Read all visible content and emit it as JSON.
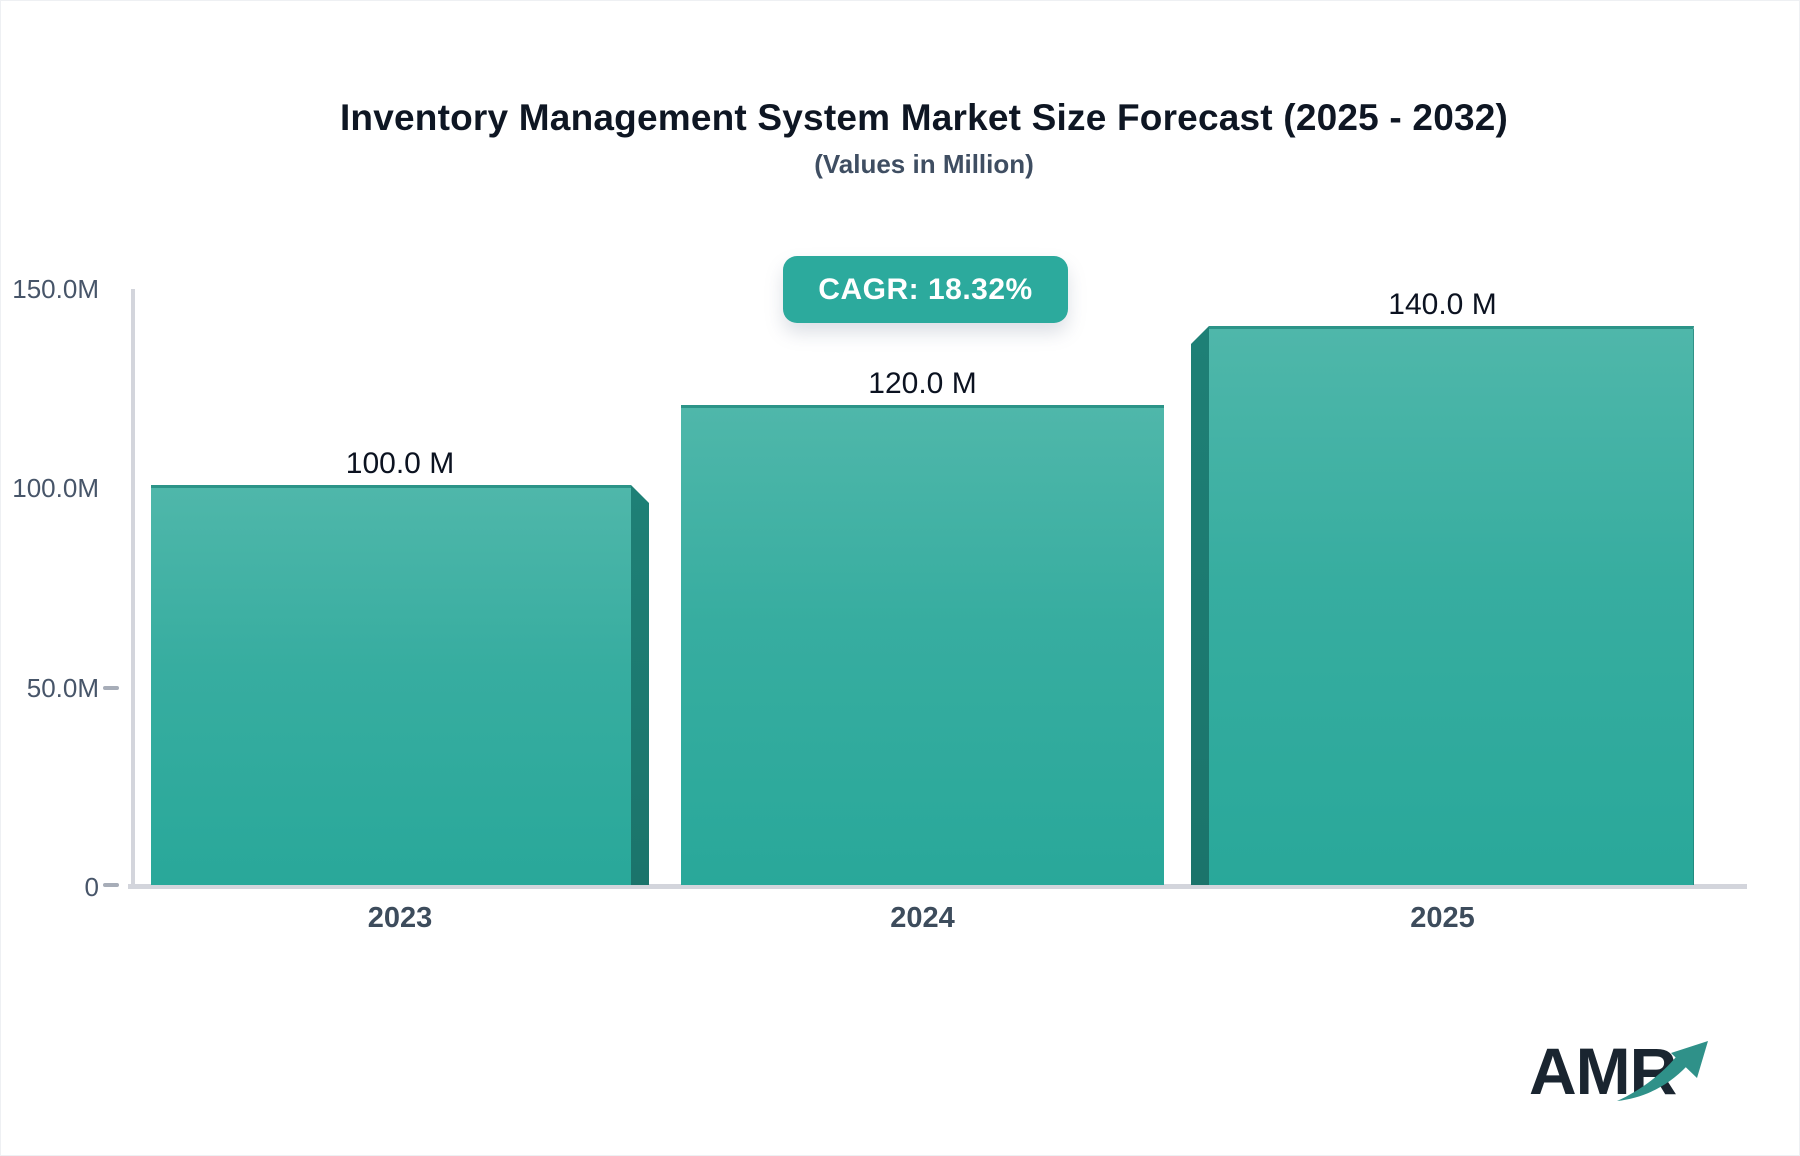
{
  "title": "Inventory Management System Market Size Forecast (2025 - 2032)",
  "subtitle": "(Values in Million)",
  "badge": {
    "label": "CAGR: 18.32%"
  },
  "chart_data": {
    "type": "bar",
    "title": "Inventory Management System Market Size Forecast (2025 - 2032)",
    "subtitle": "(Values in Million)",
    "cagr_percent": 18.32,
    "categories": [
      "2023",
      "2024",
      "2025"
    ],
    "values": [
      100,
      120,
      140
    ],
    "value_labels": [
      "100.0 M",
      "120.0 M",
      "140.0 M"
    ],
    "unit": "Million",
    "xlabel": "",
    "ylabel": "",
    "ylim": [
      0,
      150
    ],
    "y_ticks": [
      "150.0M",
      "100.0M",
      "50.0M",
      "0"
    ],
    "grid": false,
    "legend": "none",
    "bar_style": "3d-teal-gradient"
  },
  "colors": {
    "accent_teal": "#2caa9d",
    "bar_gradient_top": "#4fb7aa",
    "bar_gradient_bottom": "#29a89a",
    "bar_side_shadow": "#1e8076",
    "bar_top_edge": "#2c9488",
    "axis_line": "#d3d5dc",
    "tick_text": "#475569",
    "value_text": "#0b1220",
    "title_text": "#0e1623",
    "logo_text": "#1a2530",
    "logo_arrow": "#2f9189"
  },
  "logo": {
    "text": "AMR"
  }
}
